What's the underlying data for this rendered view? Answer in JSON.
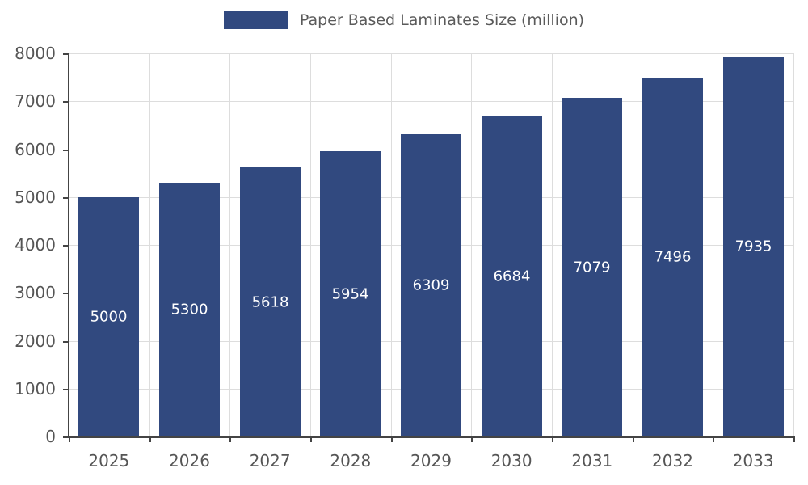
{
  "legend": {
    "label": "Paper Based Laminates Size (million)",
    "swatch_color": "#31497F"
  },
  "chart_data": {
    "type": "bar",
    "title": "Paper Based Laminates Size (million)",
    "categories": [
      "2025",
      "2026",
      "2027",
      "2028",
      "2029",
      "2030",
      "2031",
      "2032",
      "2033"
    ],
    "values": [
      5000,
      5300,
      5618,
      5954,
      6309,
      6684,
      7079,
      7496,
      7935
    ],
    "xlabel": "",
    "ylabel": "",
    "ylim": [
      0,
      8000
    ],
    "ytick_step": 1000,
    "bar_color": "#31497F",
    "value_label_color": "#ffffff",
    "grid": true,
    "legend_position": "top"
  }
}
